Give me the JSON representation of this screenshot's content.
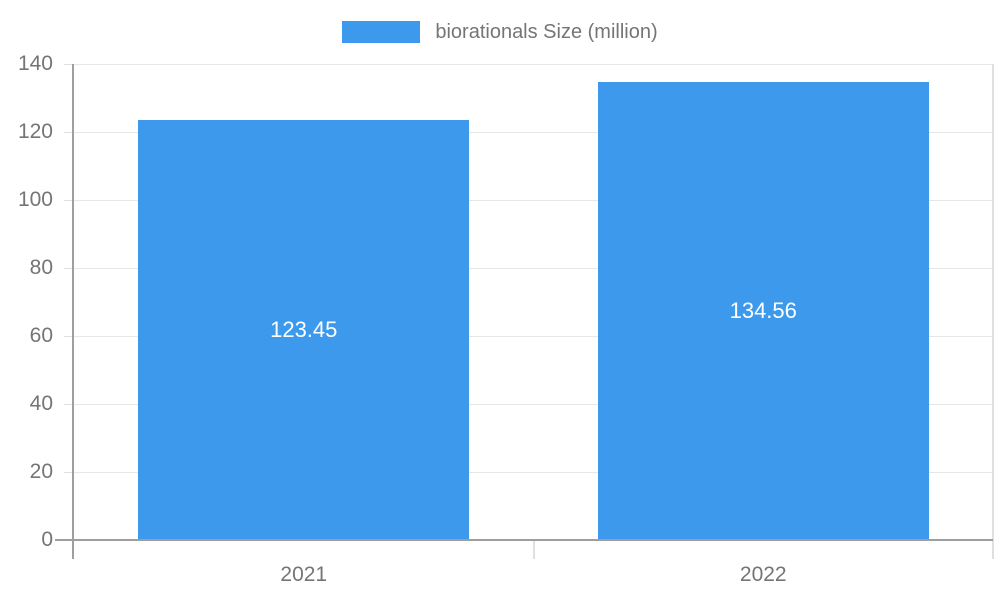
{
  "chart_data": {
    "type": "bar",
    "title": "",
    "legend": [
      {
        "label": "biorationals Size (million)",
        "color": "#3c99ec"
      }
    ],
    "legend_position": "top-center",
    "categories": [
      "2021",
      "2022"
    ],
    "series": [
      {
        "name": "biorationals Size (million)",
        "color": "#3c99ec",
        "values": [
          123.45,
          134.56
        ]
      }
    ],
    "bar_labels": [
      "123.45",
      "134.56"
    ],
    "xlabel": "",
    "ylabel": "",
    "ylim": [
      0,
      140
    ],
    "ytick_step": 20,
    "ytick_labels": [
      "0",
      "20",
      "40",
      "60",
      "80",
      "100",
      "120",
      "140"
    ],
    "grid": "horizontal",
    "legend_label": "biorationals Size (million)",
    "colors": {
      "bar": "#3c99ec",
      "bar_label_text": "#ffffff",
      "axis_line": "#9e9e9e",
      "gridline": "#e6e6e6",
      "tick": "#e0e0e0",
      "label_text": "#757575",
      "background": "#ffffff"
    }
  }
}
